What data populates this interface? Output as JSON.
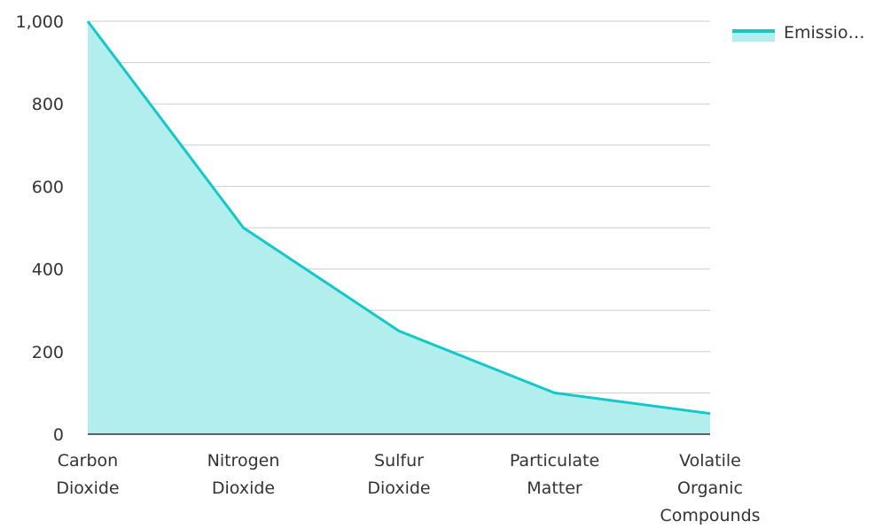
{
  "chart_data": {
    "type": "area",
    "categories": [
      [
        "Carbon",
        "Dioxide"
      ],
      [
        "Nitrogen",
        "Dioxide"
      ],
      [
        "Sulfur",
        "Dioxide"
      ],
      [
        "Particulate",
        "Matter"
      ],
      [
        "Volatile",
        "Organic",
        "Compounds"
      ]
    ],
    "series": [
      {
        "name": "Emissio…",
        "values": [
          1000,
          500,
          250,
          100,
          50
        ]
      }
    ],
    "ylim": [
      0,
      1000
    ],
    "yticks": [
      0,
      200,
      400,
      600,
      800,
      1000
    ],
    "ytick_labels": [
      "0",
      "200",
      "400",
      "600",
      "800",
      "1,000"
    ],
    "grid": true,
    "legend_position": "top-right",
    "colors": {
      "line": "#14c8c8",
      "fill": "#b2eeee",
      "grid": "#cccccc",
      "axis": "#333333"
    }
  }
}
